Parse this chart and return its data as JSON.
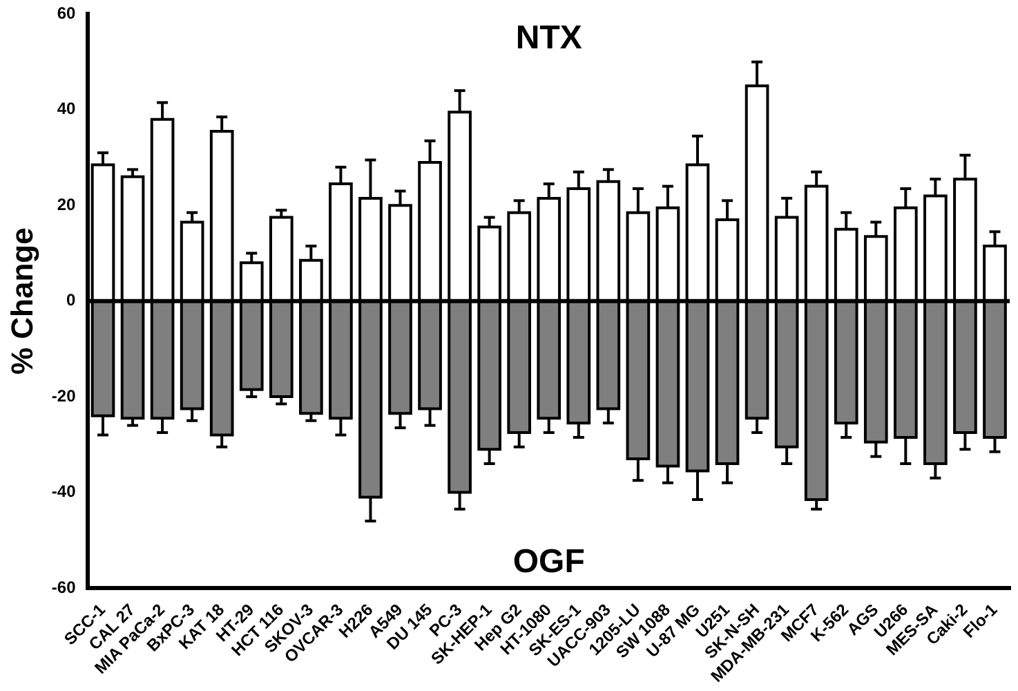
{
  "chart_data": {
    "type": "bar",
    "ylabel": "% Change",
    "stacked": true,
    "categories": [
      "SCC-1",
      "CAL 27",
      "MIA PaCa-2",
      "BxPC-3",
      "KAT 18",
      "HT-29",
      "HCT 116",
      "SKOV-3",
      "OVCAR-3",
      "H226",
      "A549",
      "DU 145",
      "PC-3",
      "SK-HEP-1",
      "Hep G2",
      "HT-1080",
      "SK-ES-1",
      "UACC-903",
      "1205-LU",
      "SW 1088",
      "U-87 MG",
      "U251",
      "SK-N-SH",
      "MDA-MB-231",
      "MCF7",
      "K-562",
      "AGS",
      "U266",
      "MES-SA",
      "Caki-2",
      "Flo-1"
    ],
    "series": [
      {
        "name": "NTX",
        "color": "#ffffff",
        "values": [
          28.5,
          26,
          38,
          16.5,
          35.5,
          8,
          17.5,
          8.5,
          24.5,
          21.5,
          20,
          29,
          39.5,
          15.5,
          18.5,
          21.5,
          23.5,
          25,
          18.5,
          19.5,
          28.5,
          17,
          45,
          17.5,
          24,
          15,
          13.5,
          19.5,
          22,
          25.5,
          11.5
        ],
        "errors": [
          2.5,
          1.5,
          3.5,
          2,
          3,
          2,
          1.5,
          3,
          3.5,
          8,
          3,
          4.5,
          4.5,
          2,
          2.5,
          3,
          3.5,
          2.5,
          5,
          4.5,
          6,
          4,
          5,
          4,
          3,
          3.5,
          3,
          4,
          3.5,
          5,
          3
        ]
      },
      {
        "name": "OGF",
        "color": "#7f7f7f",
        "values": [
          -24,
          -24.5,
          -24.5,
          -22.5,
          -28,
          -18.5,
          -20,
          -23.5,
          -24.5,
          -41,
          -23.5,
          -22.5,
          -40,
          -31,
          -27.5,
          -24.5,
          -25.5,
          -22.5,
          -33,
          -34.5,
          -35.5,
          -34,
          -24.5,
          -30.5,
          -41.5,
          -25.5,
          -29.5,
          -28.5,
          -34,
          -27.5,
          -28.5
        ],
        "errors": [
          4,
          1.5,
          3,
          2.5,
          2.5,
          1.5,
          1.5,
          1.5,
          3.5,
          5,
          3,
          3.5,
          3.5,
          3,
          3,
          3,
          3,
          3,
          4.5,
          3.5,
          6,
          4,
          3,
          3.5,
          2,
          3,
          3,
          5.5,
          3,
          3.5,
          3
        ]
      }
    ],
    "ylim": [
      -60,
      60
    ],
    "yticks": [
      -60,
      -40,
      -20,
      0,
      20,
      40,
      60
    ],
    "ref_lines": [
      {
        "axis": "y",
        "value": 0
      }
    ],
    "legend": false
  }
}
